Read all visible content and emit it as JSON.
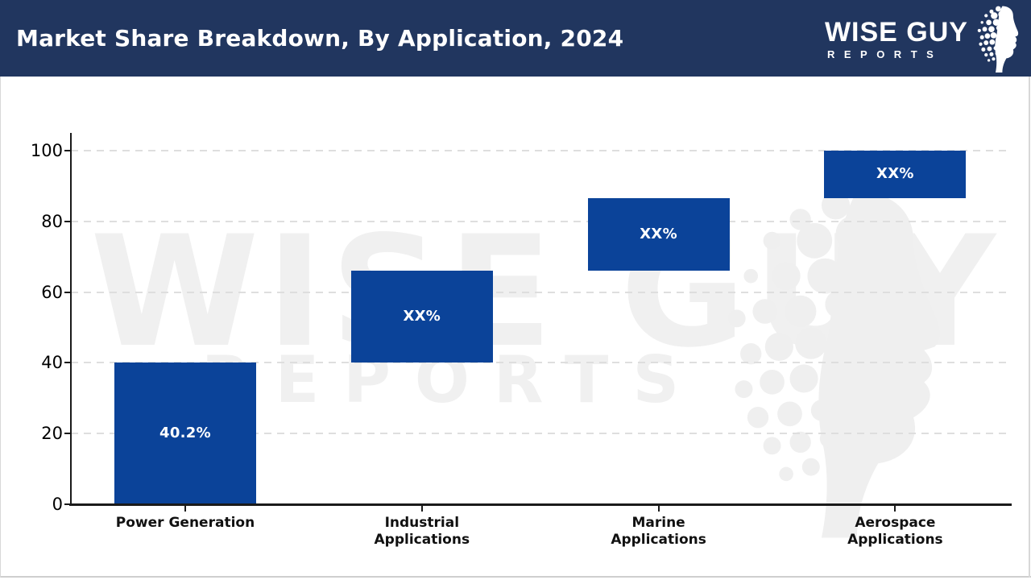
{
  "header": {
    "title": "Market Share Breakdown, By Application, 2024",
    "logo": {
      "line1": "WISE GUY",
      "line2": "REPORTS"
    }
  },
  "watermark": {
    "line1": "WISE GUY",
    "line2": "REPORTS"
  },
  "colors": {
    "header_bg": "#21365f",
    "bar": "#0b4399",
    "grid": "#dedede",
    "axis": "#1a1a1a",
    "bar_label_text": "#ffffff",
    "title_text": "#ffffff",
    "watermark": "#f0f0f0",
    "frame_border": "#cfcfcf"
  },
  "chart_data": {
    "type": "bar",
    "subtype": "waterfall",
    "title": "Market Share Breakdown, By Application, 2024",
    "xlabel": "",
    "ylabel": "",
    "categories": [
      "Power Generation",
      "Industrial Applications",
      "Marine Applications",
      "Aerospace Applications"
    ],
    "category_lines": [
      [
        "Power Generation"
      ],
      [
        "Industrial",
        "Applications"
      ],
      [
        "Marine",
        "Applications"
      ],
      [
        "Aerospace",
        "Applications"
      ]
    ],
    "segments": [
      {
        "category": "Power Generation",
        "start": 0,
        "end": 40.2,
        "label": "40.2%"
      },
      {
        "category": "Industrial Applications",
        "start": 40.2,
        "end": 66.0,
        "label": "XX%"
      },
      {
        "category": "Marine Applications",
        "start": 66.0,
        "end": 86.6,
        "label": "XX%"
      },
      {
        "category": "Aerospace Applications",
        "start": 86.6,
        "end": 100,
        "label": "XX%"
      }
    ],
    "yticks": [
      0,
      20,
      40,
      60,
      80,
      100
    ],
    "ylim": [
      0,
      105
    ],
    "grid": "dashed-horizontal",
    "legend": "none"
  }
}
